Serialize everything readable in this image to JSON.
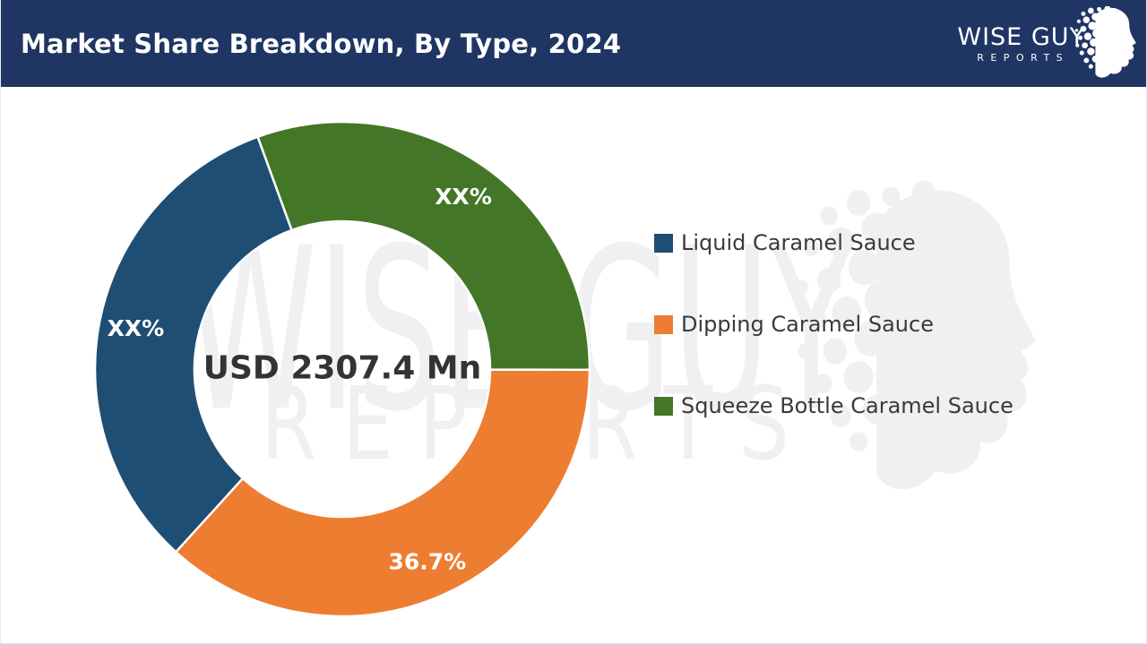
{
  "header": {
    "title": "Market Share Breakdown, By Type, 2024",
    "bg_color": "#1F3563",
    "logo": {
      "wordmark": "WISE GUY",
      "subtext": "REPORTS"
    }
  },
  "chart_data": {
    "type": "pie",
    "subtype": "donut",
    "title": "Market Share Breakdown, By Type, 2024",
    "center_label": "USD 2307.4 Mn",
    "unit": "percent market share",
    "start_angle_deg": 110,
    "direction": "counterclockwise",
    "legend_position": "right",
    "inner_radius_ratio": 0.6,
    "series": [
      {
        "name": "Liquid Caramel Sauce",
        "value": 32.7,
        "label": "XX%",
        "color": "#1F4E74"
      },
      {
        "name": "Dipping Caramel Sauce",
        "value": 36.7,
        "label": "36.7%",
        "color": "#ED7D31"
      },
      {
        "name": "Squeeze Bottle Caramel Sauce",
        "value": 30.6,
        "label": "XX%",
        "color": "#447628"
      }
    ],
    "masked_slice_values_estimated_from_angles": true
  },
  "watermark": {
    "line1": "WISE GUY",
    "line2": "R E P O R T S"
  }
}
